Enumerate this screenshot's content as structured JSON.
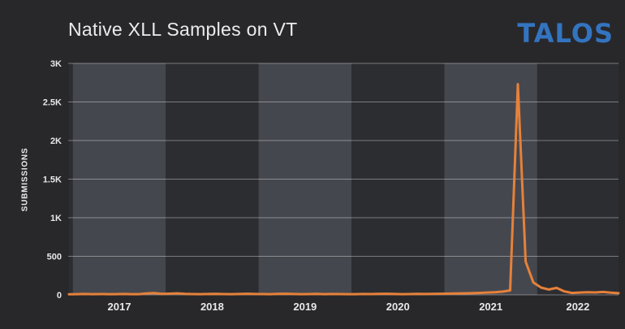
{
  "header": {
    "title": "Native XLL Samples on VT",
    "logo_text": "TALOS"
  },
  "colors": {
    "background": "#28282B",
    "band_light": "#45474E",
    "band_dark": "#2C2D31",
    "gridline": "rgba(255,255,255,0.38)",
    "line": "#E5813A",
    "logo_blue": "#3374C0",
    "text": "#E8E8E8"
  },
  "chart_data": {
    "type": "line",
    "title": "Native XLL Samples on VT",
    "xlabel": "",
    "ylabel": "SUBMISSIONS",
    "ylim": [
      0,
      3000
    ],
    "y_ticks": [
      0,
      500,
      1000,
      1500,
      2000,
      2500,
      3000
    ],
    "y_tick_labels": [
      "0",
      "500",
      "1K",
      "1.5K",
      "2K",
      "2.5K",
      "3K"
    ],
    "x_tick_labels": [
      "2017",
      "2018",
      "2019",
      "2020",
      "2021",
      "2022"
    ],
    "grid": "horizontal",
    "legend": "none",
    "background_bands": "alternating-years",
    "peak": {
      "month": "2021-10",
      "value": 2730
    },
    "months": [
      "2016-12",
      "2017-01",
      "2017-02",
      "2017-03",
      "2017-04",
      "2017-05",
      "2017-06",
      "2017-07",
      "2017-08",
      "2017-09",
      "2017-10",
      "2017-11",
      "2017-12",
      "2018-01",
      "2018-02",
      "2018-03",
      "2018-04",
      "2018-05",
      "2018-06",
      "2018-07",
      "2018-08",
      "2018-09",
      "2018-10",
      "2018-11",
      "2018-12",
      "2019-01",
      "2019-02",
      "2019-03",
      "2019-04",
      "2019-05",
      "2019-06",
      "2019-07",
      "2019-08",
      "2019-09",
      "2019-10",
      "2019-11",
      "2019-12",
      "2020-01",
      "2020-02",
      "2020-03",
      "2020-04",
      "2020-05",
      "2020-06",
      "2020-07",
      "2020-08",
      "2020-09",
      "2020-10",
      "2020-11",
      "2020-12",
      "2021-01",
      "2021-02",
      "2021-03",
      "2021-04",
      "2021-05",
      "2021-06",
      "2021-07",
      "2021-08",
      "2021-09",
      "2021-10",
      "2021-11",
      "2021-12",
      "2022-01",
      "2022-02",
      "2022-03",
      "2022-04",
      "2022-05",
      "2022-06",
      "2022-07",
      "2022-08",
      "2022-09",
      "2022-10",
      "2022-11"
    ],
    "values": [
      8,
      10,
      12,
      9,
      11,
      10,
      9,
      12,
      10,
      9,
      18,
      24,
      14,
      16,
      20,
      14,
      11,
      10,
      12,
      14,
      11,
      10,
      12,
      15,
      12,
      11,
      10,
      13,
      15,
      12,
      10,
      11,
      13,
      10,
      12,
      11,
      10,
      10,
      12,
      11,
      13,
      15,
      12,
      10,
      11,
      14,
      12,
      13,
      15,
      16,
      18,
      20,
      22,
      25,
      30,
      35,
      42,
      58,
      2730,
      430,
      160,
      95,
      70,
      90,
      45,
      25,
      30,
      35,
      32,
      38,
      28,
      22
    ]
  }
}
